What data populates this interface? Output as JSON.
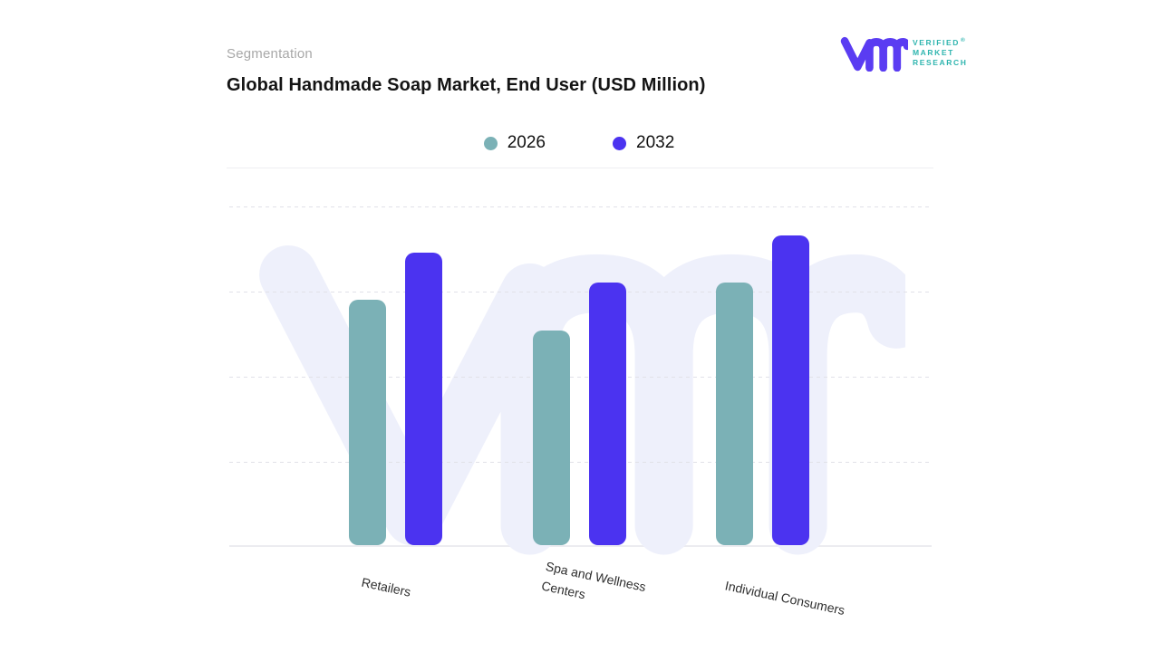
{
  "page": {
    "eyebrow": "Segmentation",
    "title": "Global Handmade Soap Market, End User (USD Million)"
  },
  "logo": {
    "name": "Verified Market Research",
    "lines": [
      "VERIFIED",
      "MARKET",
      "RESEARCH"
    ],
    "registered_mark": "®",
    "glyph_color": "#5A3CF2",
    "text_color": "#2FB5AF"
  },
  "chart_data": {
    "type": "bar",
    "title": "Global Handmade Soap Market, End User (USD Million)",
    "subtitle": "Segmentation",
    "categories": [
      "Retailers",
      "Spa and Wellness\nCenters",
      "Individual Consumers"
    ],
    "series": [
      {
        "name": "2026",
        "color": "#7BB1B6",
        "values": [
          72,
          63,
          77
        ]
      },
      {
        "name": "2032",
        "color": "#4B33F0",
        "values": [
          86,
          77,
          91
        ]
      }
    ],
    "xlabel": "",
    "ylabel": "",
    "units": "USD Million",
    "value_axis_labels_visible": false,
    "value_scale_note": "y-axis unlabeled; values estimated relative to top gridline = 100",
    "ylim": [
      0,
      100
    ],
    "grid": {
      "horizontal_dashed_lines": 4,
      "baseline": true,
      "vertical": false
    },
    "legend_position": "top-center",
    "bar_corner_radius": 10,
    "x_label_rotation_deg": 12,
    "background_watermark": "vmr-monogram"
  }
}
